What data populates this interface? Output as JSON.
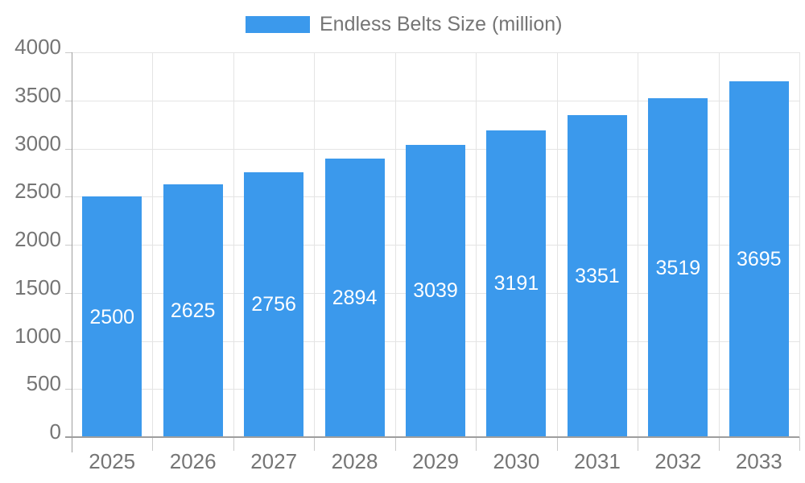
{
  "legend": {
    "label": "Endless Belts Size (million)"
  },
  "chart_data": {
    "type": "bar",
    "title": "",
    "categories": [
      "2025",
      "2026",
      "2027",
      "2028",
      "2029",
      "2030",
      "2031",
      "2032",
      "2033"
    ],
    "values": [
      2500,
      2625,
      2756,
      2894,
      3039,
      3191,
      3351,
      3519,
      3695
    ],
    "series": [
      {
        "name": "Endless Belts Size (million)",
        "values": [
          2500,
          2625,
          2756,
          2894,
          3039,
          3191,
          3351,
          3519,
          3695
        ]
      }
    ],
    "xlabel": "",
    "ylabel": "",
    "ylim": [
      0,
      4000
    ],
    "yticks": [
      0,
      500,
      1000,
      1500,
      2000,
      2500,
      3000,
      3500,
      4000
    ],
    "grid": true,
    "legend_position": "top",
    "bar_labels_inside": true
  },
  "colors": {
    "bar": "#3B99EC",
    "bar_label": "#FFFFFF",
    "axis_text": "#757575",
    "gridline": "#E4E4E4",
    "axis_line": "#9E9E9E",
    "tick": "#C9C9C9",
    "background": "#FFFFFF"
  }
}
